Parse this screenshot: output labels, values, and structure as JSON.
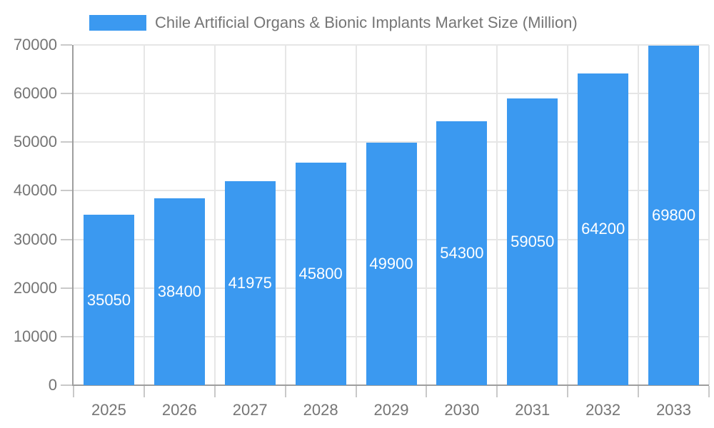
{
  "legend": {
    "title": "Chile Artificial Organs & Bionic Implants Market Size (Million)"
  },
  "chart_data": {
    "type": "bar",
    "title": "Chile Artificial Organs & Bionic Implants Market Size (Million)",
    "categories": [
      "2025",
      "2026",
      "2027",
      "2028",
      "2029",
      "2030",
      "2031",
      "2032",
      "2033"
    ],
    "values": [
      35050,
      38400,
      41975,
      45800,
      49900,
      54300,
      59050,
      64200,
      69800
    ],
    "xlabel": "",
    "ylabel": "",
    "ylim": [
      0,
      70000
    ],
    "ytick_step": 10000,
    "ytick_labels": [
      "0",
      "10000",
      "20000",
      "30000",
      "40000",
      "50000",
      "60000",
      "70000"
    ],
    "grid": true,
    "legend_position": "top",
    "colors": {
      "bar": "#3b99f0",
      "value_label": "#ffffff",
      "axis_label": "#757575",
      "gridline": "#e6e6e6",
      "axis_line": "#9e9e9e",
      "tick": "#c9c9c9",
      "background": "#ffffff"
    }
  }
}
